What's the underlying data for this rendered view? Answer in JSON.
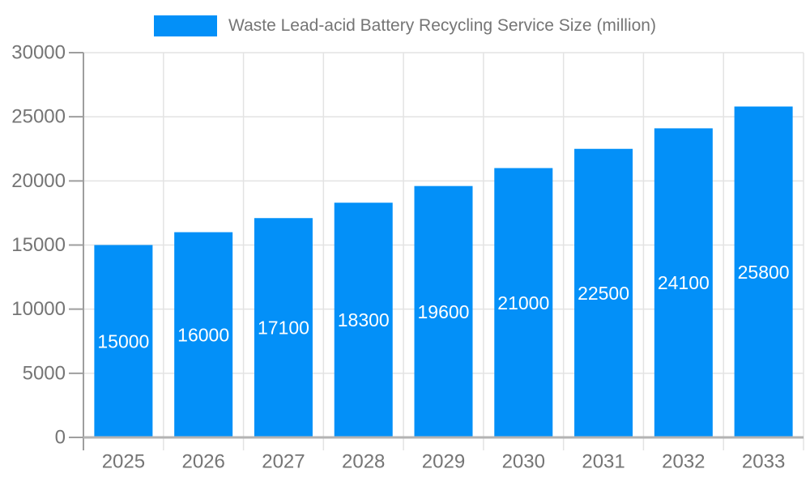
{
  "legend": {
    "label": "Waste Lead-acid Battery Recycling Service Size (million)"
  },
  "chart_data": {
    "type": "bar",
    "title": "Waste Lead-acid Battery Recycling Service Size (million)",
    "series": [
      {
        "name": "Waste Lead-acid Battery Recycling Service Size (million)",
        "values": [
          15000,
          16000,
          17100,
          18300,
          19600,
          21000,
          22500,
          24100,
          25800
        ]
      }
    ],
    "categories": [
      "2025",
      "2026",
      "2027",
      "2028",
      "2029",
      "2030",
      "2031",
      "2032",
      "2033"
    ],
    "value_labels": [
      "15000",
      "16000",
      "17100",
      "18300",
      "19600",
      "21000",
      "22500",
      "24100",
      "25800"
    ],
    "xlabel": "",
    "ylabel": "",
    "ylim": [
      0,
      30000
    ],
    "y_ticks": [
      0,
      5000,
      10000,
      15000,
      20000,
      25000,
      30000
    ],
    "grid": true,
    "legend_position": "top-center",
    "value_label_position": "inside-center",
    "colors": {
      "bar": "#0390f8",
      "grid": "#e3e3e3",
      "axis": "#9e9e9e",
      "baseline": "#b3b3b3",
      "tick_label": "#757575",
      "value_label": "#ffffff",
      "background": "#ffffff"
    }
  }
}
